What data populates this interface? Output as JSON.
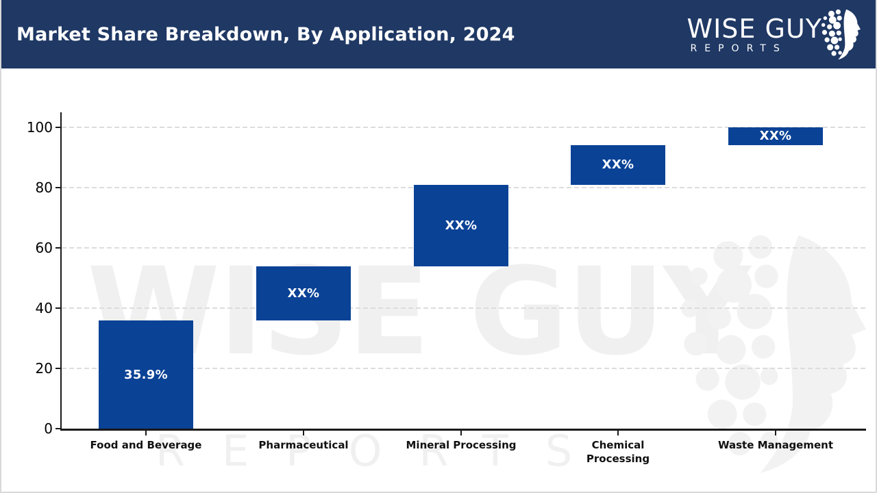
{
  "header": {
    "title": "Market Share Breakdown, By Application, 2024",
    "bg_color": "#1f3864",
    "logo": {
      "wordmark": "WISE GUY",
      "subtitle": "REPORTS"
    }
  },
  "watermark": {
    "wordmark": "WISE GUY",
    "subtitle": "REPORTS"
  },
  "chart_data": {
    "type": "bar",
    "subtype": "waterfall",
    "title": "Market Share Breakdown, By Application, 2024",
    "categories": [
      "Food and Beverage",
      "Pharmaceutical",
      "Mineral Processing",
      "Chemical\nProcessing",
      "Waste Management"
    ],
    "segments": [
      {
        "category": "Food and Beverage",
        "start": 0,
        "end": 35.9,
        "label": "35.9%"
      },
      {
        "category": "Pharmaceutical",
        "start": 35.9,
        "end": 53.9,
        "label": "XX%"
      },
      {
        "category": "Mineral Processing",
        "start": 53.9,
        "end": 80.9,
        "label": "XX%"
      },
      {
        "category": "Chemical Processing",
        "start": 80.9,
        "end": 94.1,
        "label": "XX%"
      },
      {
        "category": "Waste Management",
        "start": 94.1,
        "end": 100,
        "label": "XX%"
      }
    ],
    "unit": "%",
    "yticks": [
      0,
      20,
      40,
      60,
      80,
      100
    ],
    "ylim": [
      0,
      104
    ],
    "xlabel": "",
    "ylabel": "",
    "grid": true,
    "grid_style": "dashed-horizontal",
    "legend": "none",
    "bar_color": "#0a4296",
    "bar_label_color": "#ffffff"
  }
}
